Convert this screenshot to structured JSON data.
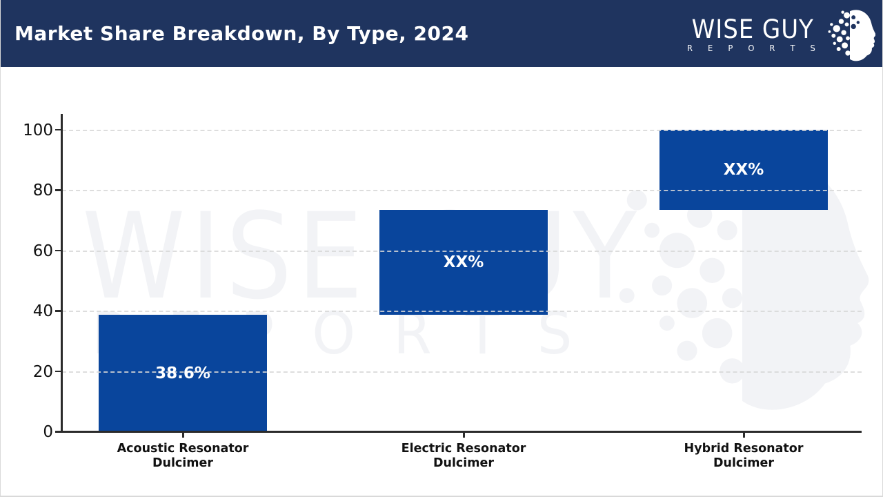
{
  "header": {
    "title": "Market Share Breakdown, By Type, 2024",
    "logo": {
      "line1": "WISE GUY",
      "line2": "REPORTS"
    }
  },
  "watermark": {
    "line1": "WISE GUY",
    "line2": "REPORTS"
  },
  "chart_data": {
    "type": "bar",
    "subtype": "waterfall-segments",
    "title": "Market Share Breakdown, By Type, 2024",
    "categories": [
      "Acoustic Resonator Dulcimer",
      "Electric Resonator Dulcimer",
      "Hybrid Resonator Dulcimer"
    ],
    "bars": [
      {
        "category": "Acoustic Resonator Dulcimer",
        "start": 0,
        "end": 38.6,
        "label": "38.6%"
      },
      {
        "category": "Electric Resonator Dulcimer",
        "start": 38.6,
        "end": 73.4,
        "label": "XX%"
      },
      {
        "category": "Hybrid Resonator Dulcimer",
        "start": 73.4,
        "end": 99.8,
        "label": "XX%"
      }
    ],
    "xlabel": "",
    "ylabel": "",
    "ylim": [
      0,
      100
    ],
    "yticks": [
      0,
      20,
      40,
      60,
      80,
      100
    ],
    "grid": "horizontal-dashed-above-bars",
    "legend": "none",
    "bar_color": "#09459C",
    "bar_label_color": "#ffffff",
    "axis_color": "#2b2b2b",
    "grid_color": "#d7d7d7",
    "header_bg": "#1F345F",
    "watermark_color": "#f2f3f6"
  }
}
